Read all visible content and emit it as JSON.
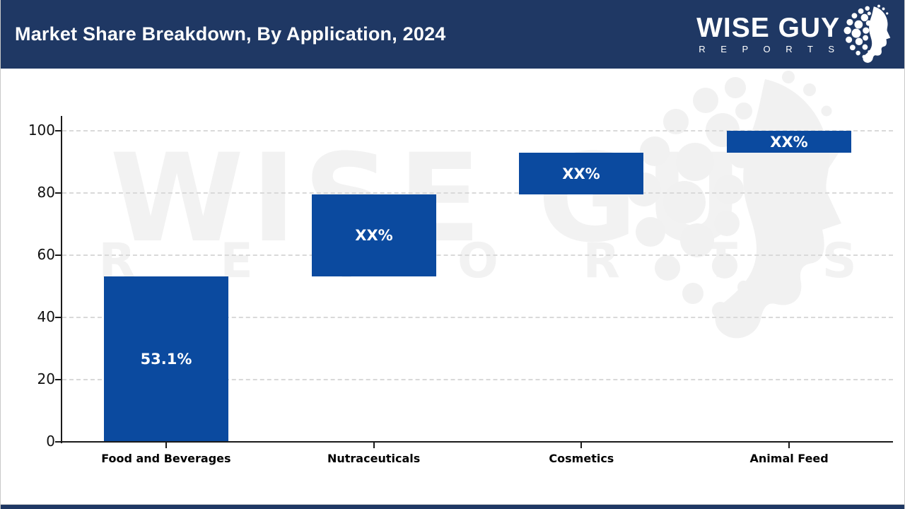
{
  "header": {
    "title": "Market Share Breakdown, By Application, 2024",
    "logo": {
      "name": "WISE GUY",
      "tagline": "REPORTS"
    }
  },
  "watermark": {
    "line1": "WISE GUY",
    "line2": "REPORTS"
  },
  "colors": {
    "header_bg": "#1f3864",
    "footer_bg": "#1f3864",
    "bar": "#0b4a9f",
    "grid": "#d9d9d9",
    "axis": "#1a1a1a",
    "watermark": "#f2f2f2",
    "plot_bg": "#ffffff"
  },
  "chart_data": {
    "type": "bar",
    "variant": "waterfall",
    "title": "Market Share Breakdown, By Application, 2024",
    "categories": [
      "Food and Beverages",
      "Nutraceuticals",
      "Cosmetics",
      "Animal Feed"
    ],
    "segments": [
      {
        "category": "Food and Beverages",
        "start": 0,
        "end": 53.1,
        "label": "53.1%"
      },
      {
        "category": "Nutraceuticals",
        "start": 53.1,
        "end": 79.5,
        "label": "XX%"
      },
      {
        "category": "Cosmetics",
        "start": 79.5,
        "end": 92.9,
        "label": "XX%"
      },
      {
        "category": "Animal Feed",
        "start": 92.9,
        "end": 100,
        "label": "XX%"
      }
    ],
    "xlabel": "",
    "ylabel": "",
    "ylim": [
      0,
      105
    ],
    "yticks": [
      0,
      20,
      40,
      60,
      80,
      100
    ],
    "grid": {
      "horizontal": true,
      "style": "dashed"
    },
    "legend": null
  }
}
